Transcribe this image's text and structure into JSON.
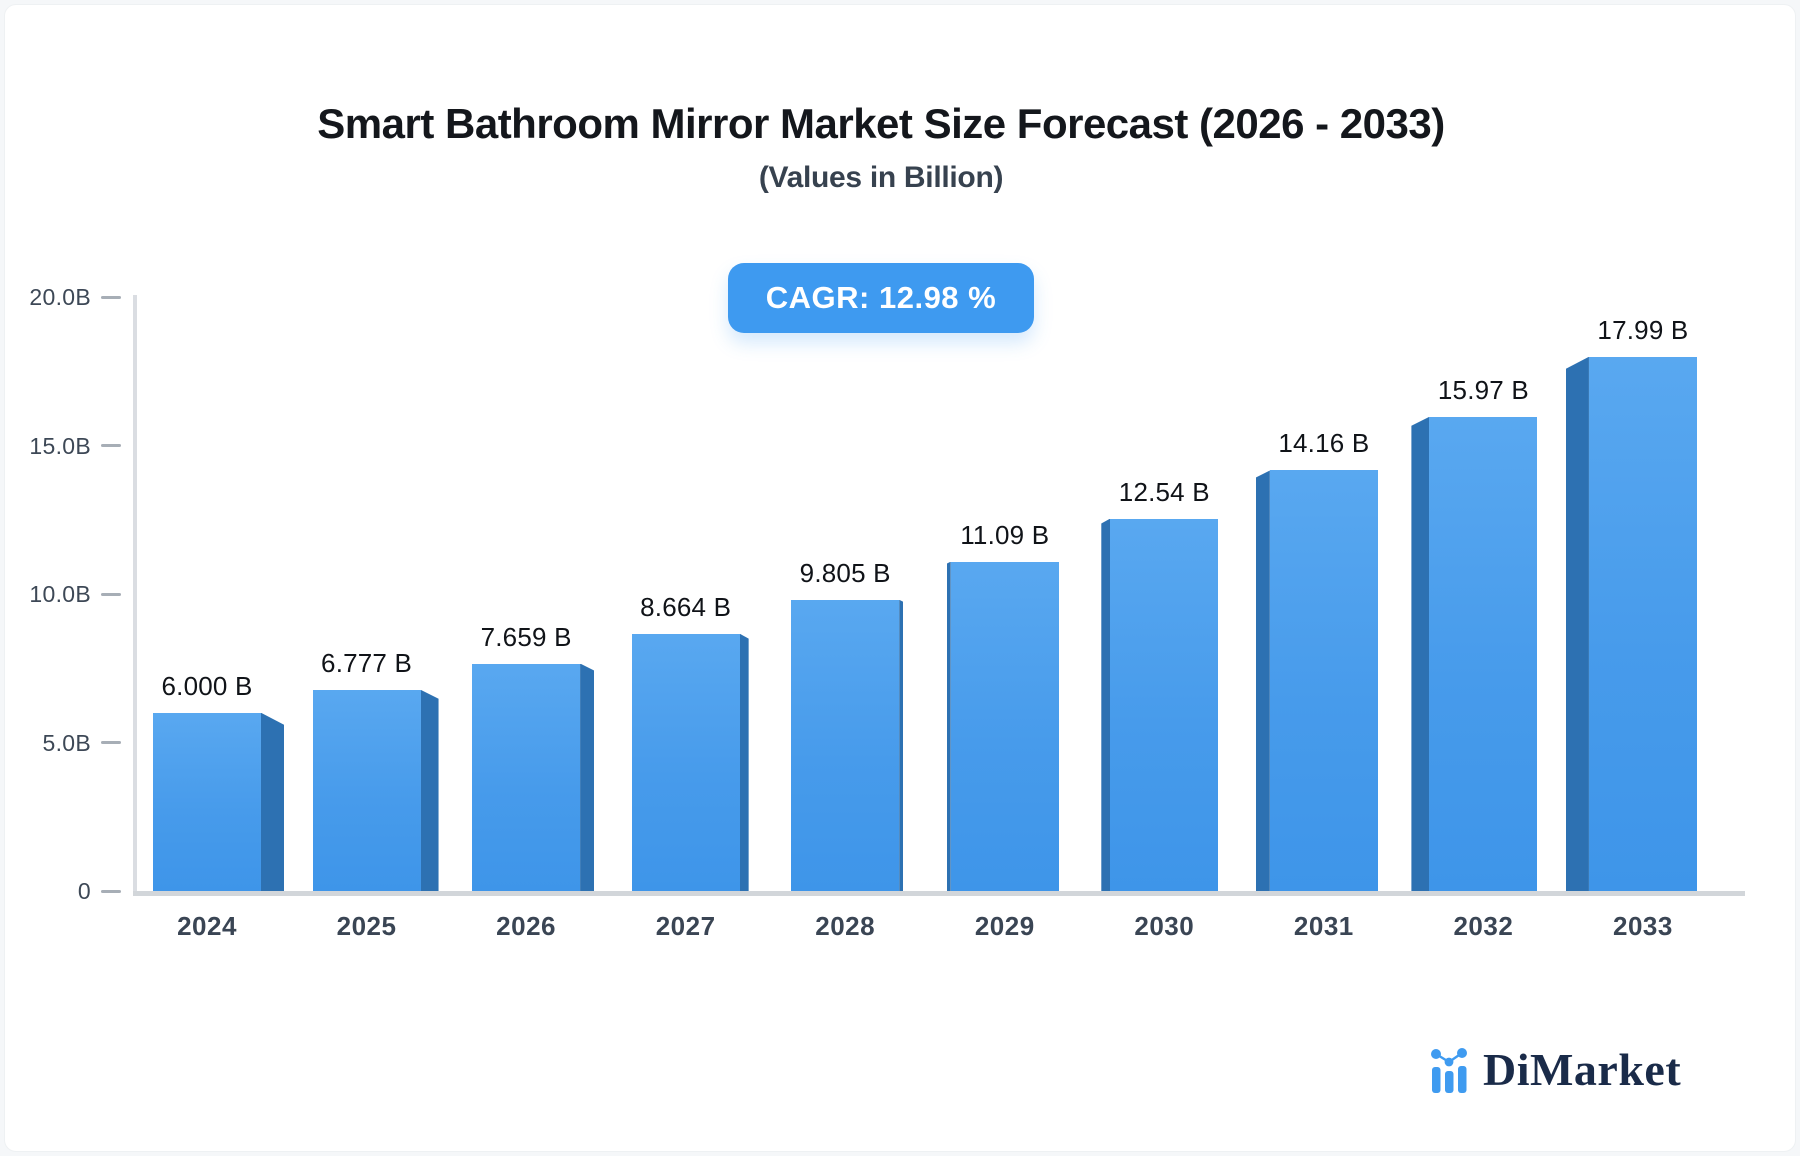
{
  "header": {
    "title": "Smart Bathroom Mirror Market Size Forecast (2026 - 2033)",
    "subtitle": "(Values in Billion)",
    "cagr_label": "CAGR: 12.98 %"
  },
  "chart_data": {
    "type": "bar",
    "title": "Smart Bathroom Mirror Market Size Forecast (2026 - 2033)",
    "subtitle": "(Values in Billion)",
    "cagr_percent": 12.98,
    "categories": [
      "2024",
      "2025",
      "2026",
      "2027",
      "2028",
      "2029",
      "2030",
      "2031",
      "2032",
      "2033"
    ],
    "values": [
      6.0,
      6.777,
      7.659,
      8.664,
      9.805,
      11.09,
      12.54,
      14.16,
      15.97,
      17.99
    ],
    "value_labels": [
      "6.000 B",
      "6.777 B",
      "7.659 B",
      "8.664 B",
      "9.805 B",
      "11.09 B",
      "12.54 B",
      "14.16 B",
      "15.97 B",
      "17.99 B"
    ],
    "xlabel": "",
    "ylabel": "",
    "ylim": [
      0,
      20
    ],
    "y_ticks": [
      {
        "label": "20.0B",
        "value": 20
      },
      {
        "label": "15.0B",
        "value": 15
      },
      {
        "label": "10.0B",
        "value": 10
      },
      {
        "label": "5.0B",
        "value": 5
      },
      {
        "label": "0",
        "value": 0
      }
    ],
    "grid": false,
    "legend": false,
    "bar_color_top": "#59a8f0",
    "bar_color_bottom": "#3e95e9",
    "bar_side_color": "#2d71b2",
    "axis_color": "#d2d6da"
  },
  "logo": {
    "text": "DiMarket",
    "icon": "bar-chart-trend-icon",
    "text_color": "#1a2b49",
    "accent_color": "#3f9bf0"
  }
}
